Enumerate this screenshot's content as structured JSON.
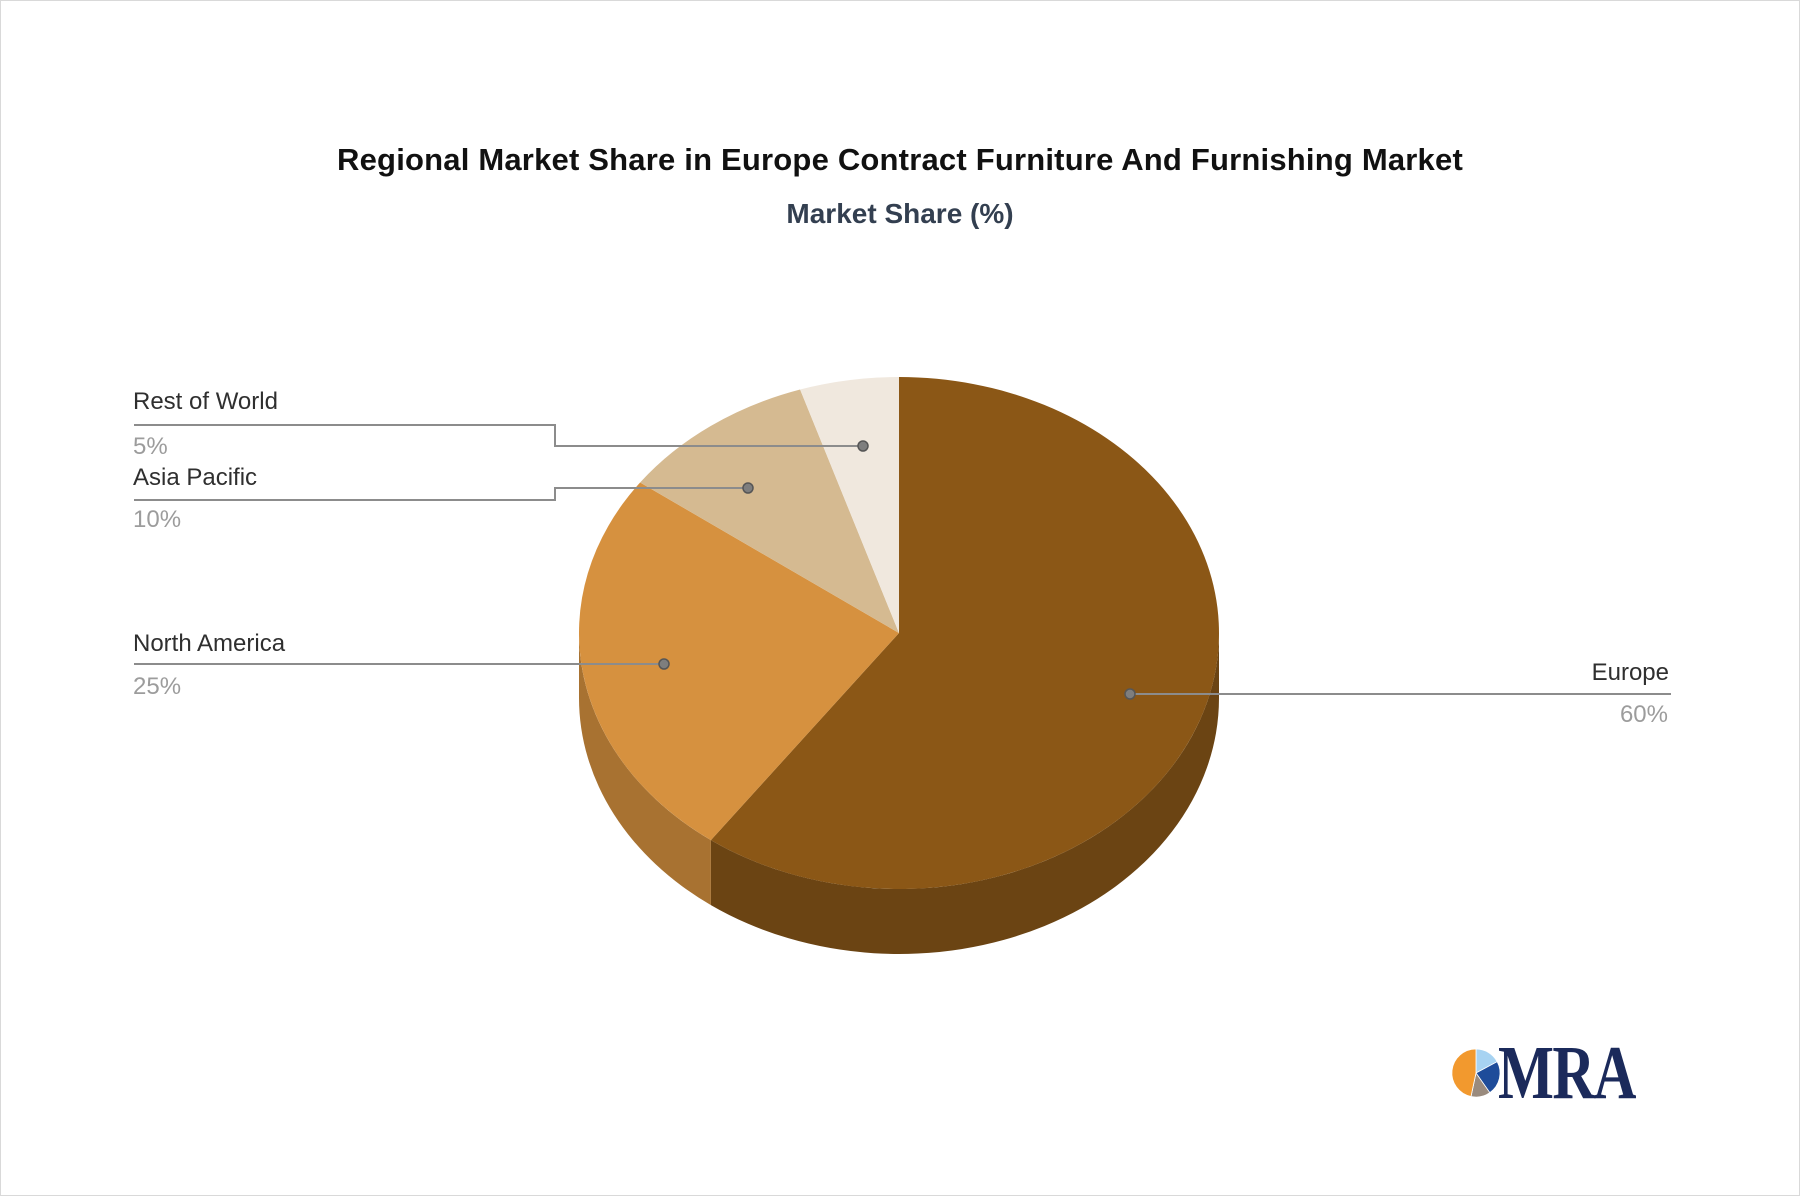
{
  "chart_data": {
    "type": "pie",
    "style": "3d",
    "title": "Regional Market Share in Europe Contract Furniture And Furnishing Market",
    "subtitle": "Market Share (%)",
    "unit": "%",
    "direction": "clockwise",
    "start_angle_deg": 0,
    "legend_position": "callout-labels",
    "series": [
      {
        "name": "Europe",
        "value": 60,
        "label": "60%",
        "color": "#8B5716",
        "side_color": "#6B4413"
      },
      {
        "name": "North America",
        "value": 25,
        "label": "25%",
        "color": "#D6913F",
        "side_color": "#A87231"
      },
      {
        "name": "Asia Pacific",
        "value": 10,
        "label": "10%",
        "color": "#D5BA91",
        "side_color": "#AE9570"
      },
      {
        "name": "Rest of World",
        "value": 5,
        "label": "5%",
        "color": "#F0E8DE",
        "side_color": "#C6B8A8"
      }
    ]
  },
  "callouts": {
    "rest_of_world": {
      "label": "Rest of World",
      "pct": "5%"
    },
    "asia_pacific": {
      "label": "Asia Pacific",
      "pct": "10%"
    },
    "north_america": {
      "label": "North America",
      "pct": "25%"
    },
    "europe": {
      "label": "Europe",
      "pct": "60%"
    }
  },
  "leader_line_color": "#8C8C8C",
  "logo": {
    "text": "MRA",
    "icon": "pie-chart-logo-icon",
    "icon_colors": {
      "orange": "#F2992E",
      "light_blue": "#A7D3F2",
      "dark_blue": "#1E4C9A",
      "gray": "#9A8B7E"
    },
    "text_color": "#1B2A5B"
  }
}
